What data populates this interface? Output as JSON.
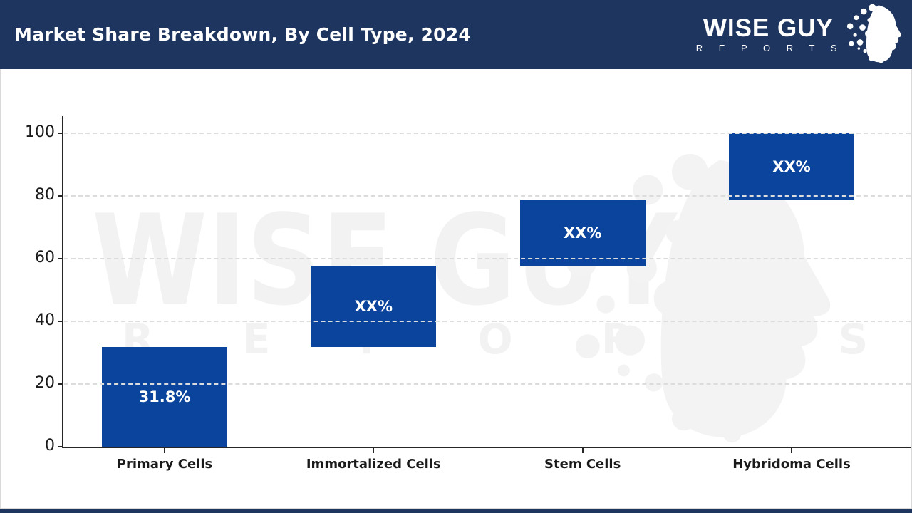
{
  "header": {
    "title": "Market Share Breakdown, By Cell Type, 2024",
    "bg_color": "#1e3560",
    "logo": {
      "line1": "WISE GUY",
      "line2": "R E P O R T S"
    }
  },
  "watermark": {
    "line1": "WISE GUY",
    "line2": "R E P O R T S"
  },
  "chart_data": {
    "type": "bar",
    "subtype": "waterfall",
    "title": "Market Share Breakdown, By Cell Type, 2024",
    "categories": [
      "Primary Cells",
      "Immortalized Cells",
      "Stem Cells",
      "Hybridoma Cells"
    ],
    "segments": [
      {
        "category": "Primary Cells",
        "start": 0,
        "end": 31.8,
        "label": "31.8%"
      },
      {
        "category": "Immortalized Cells",
        "start": 31.8,
        "end": 57.6,
        "label": "XX%"
      },
      {
        "category": "Stem Cells",
        "start": 57.6,
        "end": 78.6,
        "label": "XX%"
      },
      {
        "category": "Hybridoma Cells",
        "start": 78.6,
        "end": 100,
        "label": "XX%"
      }
    ],
    "yticks": [
      0,
      20,
      40,
      60,
      80,
      100
    ],
    "ylim": [
      0,
      105
    ],
    "xlabel": "",
    "ylabel": "",
    "grid": "horizontal dashed, drawn above bars",
    "legend": null,
    "bar_color": "#0a449c",
    "bar_label_color": "#ffffff",
    "axis_color": "#262626",
    "gridline_color": "#dcdcdc"
  }
}
